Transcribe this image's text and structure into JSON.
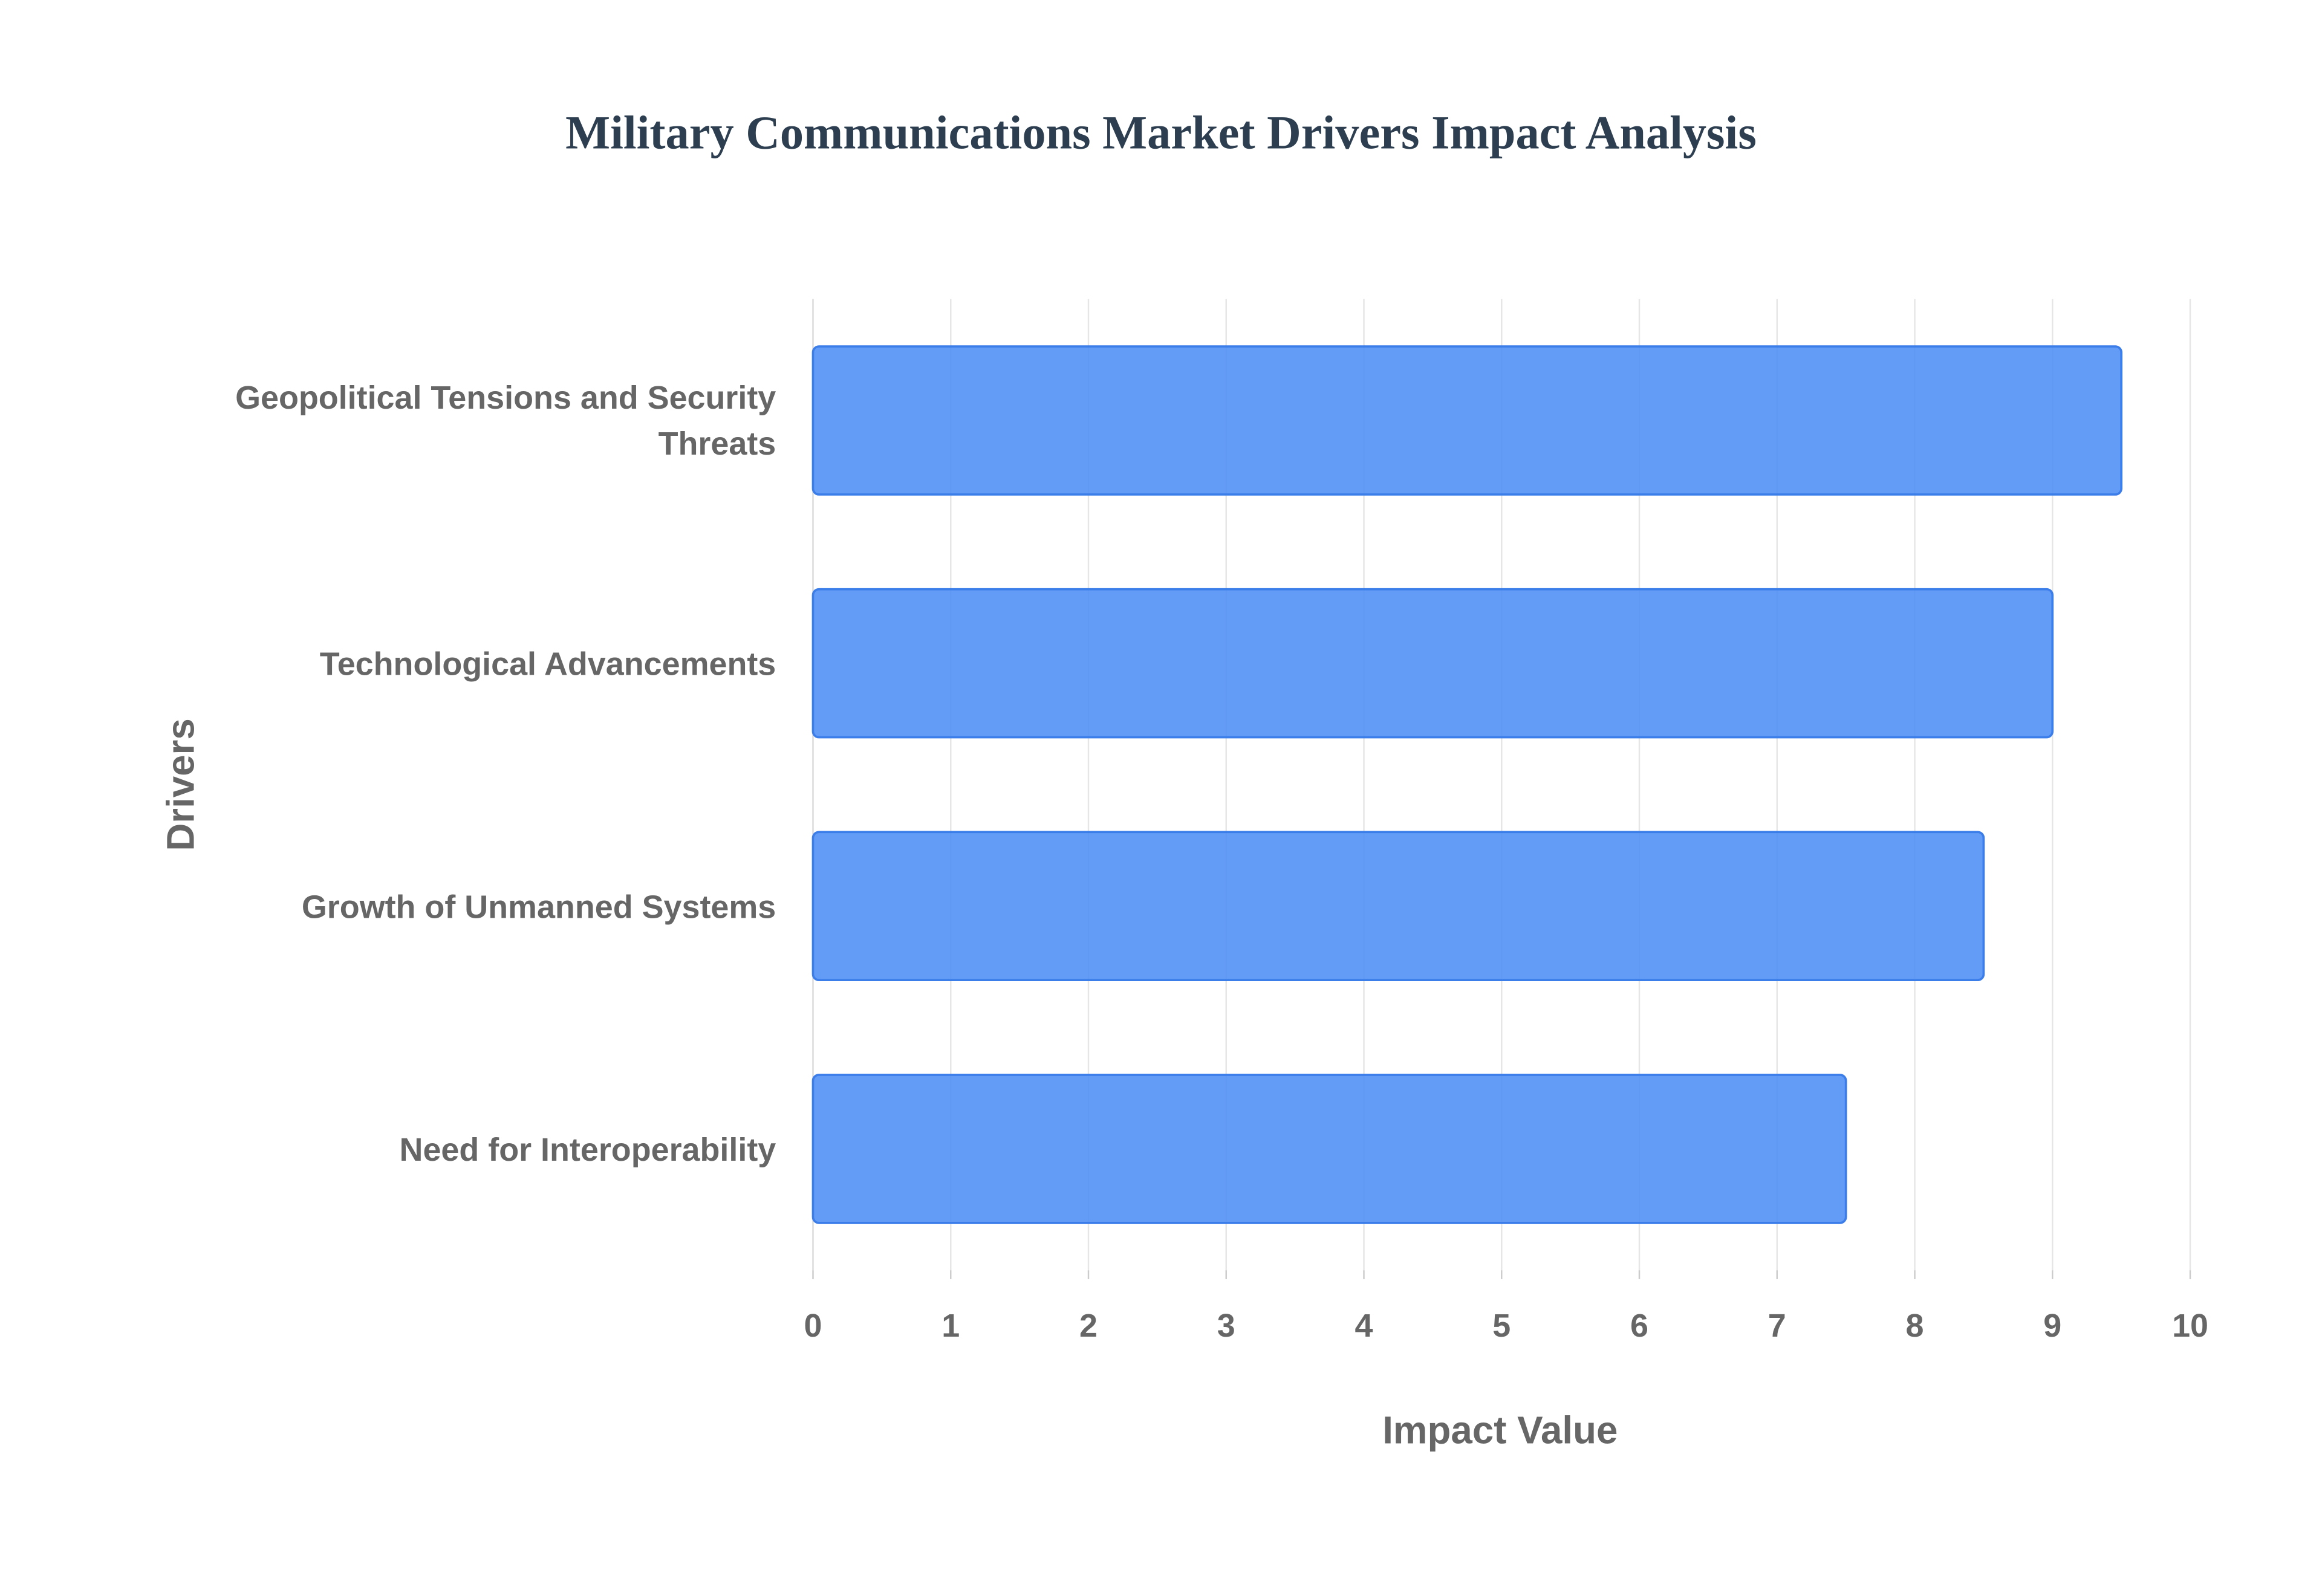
{
  "chart_data": {
    "type": "bar",
    "orientation": "horizontal",
    "title": "Military Communications Market Drivers Impact Analysis",
    "x_label": "Impact Value",
    "y_label": "Drivers",
    "categories": [
      "Geopolitical Tensions and Security Threats",
      "Technological Advancements",
      "Growth of Unmanned Systems",
      "Need for Interoperability"
    ],
    "values": [
      9.5,
      9,
      8.5,
      7.5
    ],
    "color": "#4d8ef6",
    "xlim": [
      0,
      10
    ],
    "xticks": [
      0,
      1,
      2,
      3,
      4,
      5,
      6,
      7,
      8,
      9,
      10
    ],
    "grid": true
  }
}
